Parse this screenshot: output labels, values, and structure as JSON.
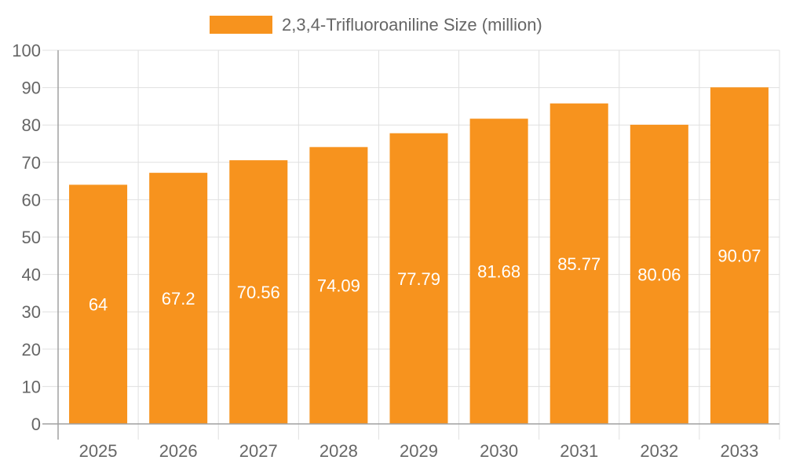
{
  "chart_data": {
    "type": "bar",
    "title": "",
    "xlabel": "",
    "ylabel": "",
    "categories": [
      "2025",
      "2026",
      "2027",
      "2028",
      "2029",
      "2030",
      "2031",
      "2032",
      "2033"
    ],
    "series": [
      {
        "name": "2,3,4-Trifluoroaniline Size (million)",
        "values": [
          64,
          67.2,
          70.56,
          74.09,
          77.79,
          81.68,
          85.77,
          80.06,
          90.07
        ]
      }
    ],
    "ylim": [
      0,
      100
    ],
    "yticks": [
      0,
      10,
      20,
      30,
      40,
      50,
      60,
      70,
      80,
      90,
      100
    ],
    "grid": true,
    "legend_placement": "top",
    "data_labels": true,
    "colors": {
      "bar": "#F7931E",
      "grid": "#e0e0e0",
      "axis": "#a0a0a0",
      "text": "#666666",
      "label": "#ffffff"
    }
  }
}
